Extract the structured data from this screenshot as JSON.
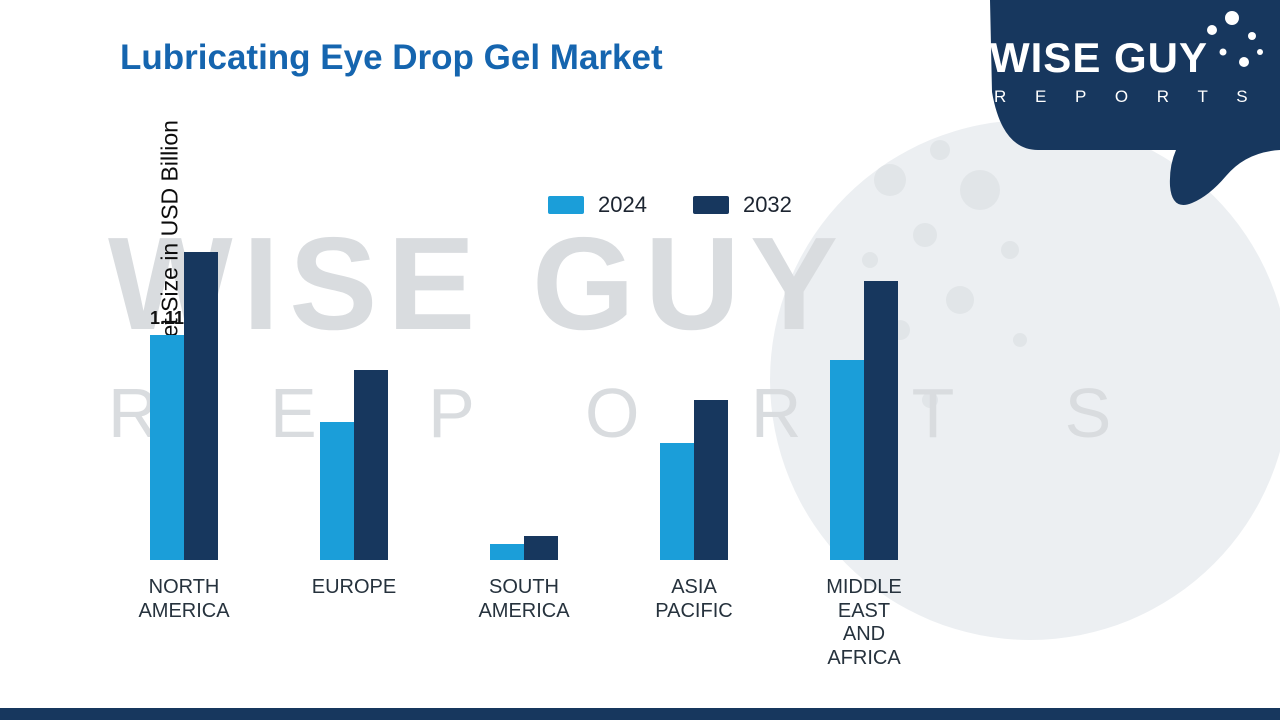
{
  "page": {
    "title": "Lubricating Eye Drop Gel Market"
  },
  "logo": {
    "brand_line1": "WISE GUY",
    "brand_line2": "R E P O R T S",
    "background_color": "#17375e",
    "text_color": "#ffffff"
  },
  "watermark": {
    "line1": "WISE GUY",
    "line2": "R E P O R T S"
  },
  "y_axis_label": "Market Size in USD Billion",
  "legend": {
    "items": [
      {
        "label": "2024",
        "color": "#1b9ed9"
      },
      {
        "label": "2032",
        "color": "#17375e"
      }
    ]
  },
  "chart_data": {
    "type": "bar",
    "title": "Lubricating Eye Drop Gel Market",
    "xlabel": "",
    "ylabel": "Market Size in USD Billion",
    "categories": [
      "NORTH\nAMERICA",
      "EUROPE",
      "SOUTH\nAMERICA",
      "ASIA\nPACIFIC",
      "MIDDLE\nEAST\nAND\nAFRICA"
    ],
    "series": [
      {
        "name": "2024",
        "color": "#1b9ed9",
        "values": [
          1.11,
          0.68,
          0.08,
          0.58,
          0.99
        ]
      },
      {
        "name": "2032",
        "color": "#17375e",
        "values": [
          1.52,
          0.94,
          0.12,
          0.79,
          1.38
        ]
      }
    ],
    "annotations": [
      {
        "series": "2024",
        "category_index": 0,
        "text": "1.11"
      }
    ],
    "ylim": [
      0,
      1.6
    ],
    "grid": false,
    "legend_position": "top",
    "y_axis_visible": false
  },
  "footer": {
    "color": "#17375e"
  },
  "colors": {
    "title": "#1565af",
    "watermark": "#d9dcdf",
    "background_circle": "#eceff2",
    "category_text": "#26323d"
  }
}
